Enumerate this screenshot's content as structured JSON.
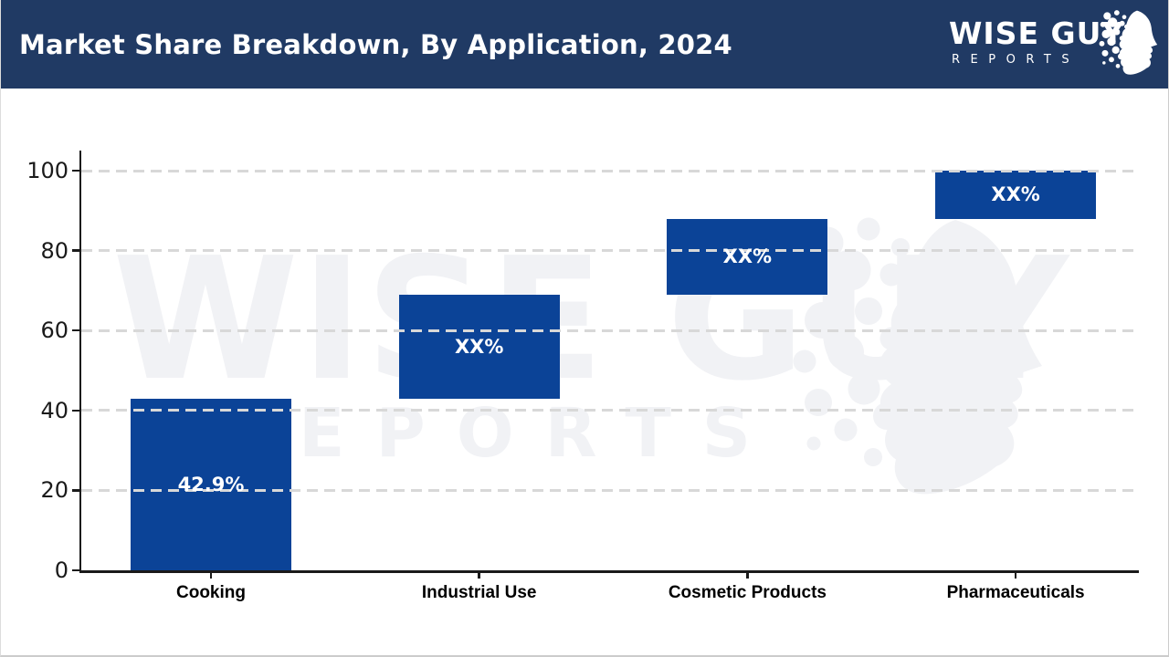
{
  "header": {
    "title": "Market Share Breakdown, By Application, 2024",
    "brand": {
      "name": "WISE GUY",
      "subtitle": "REPORTS"
    }
  },
  "watermark": {
    "name": "WISE GUY",
    "subtitle": "REPORTS"
  },
  "chart_data": {
    "type": "bar",
    "subtype": "waterfall",
    "title": "Market Share Breakdown, By Application, 2024",
    "categories": [
      "Cooking",
      "Industrial Use",
      "Cosmetic Products",
      "Pharmaceuticals"
    ],
    "bars": [
      {
        "category": "Cooking",
        "start": 0,
        "end": 42.9,
        "label": "42.9%"
      },
      {
        "category": "Industrial Use",
        "start": 42.9,
        "end": 69,
        "label": "XX%"
      },
      {
        "category": "Cosmetic Products",
        "start": 69,
        "end": 88,
        "label": "XX%"
      },
      {
        "category": "Pharmaceuticals",
        "start": 88,
        "end": 100,
        "label": "XX%"
      }
    ],
    "y_ticks": [
      0,
      20,
      40,
      60,
      80,
      100
    ],
    "ylim": [
      0,
      105
    ],
    "xlabel": "",
    "ylabel": "",
    "grid": "horizontal-dashed",
    "legend": "none",
    "bar_color": "#0B4397",
    "bar_label_color": "#FFFFFF"
  },
  "colors": {
    "header_bg": "#203A64",
    "bar": "#0B4397",
    "gridline": "#D8D8D8",
    "axis": "#1A1A1A",
    "watermark": "#F1F2F5"
  }
}
